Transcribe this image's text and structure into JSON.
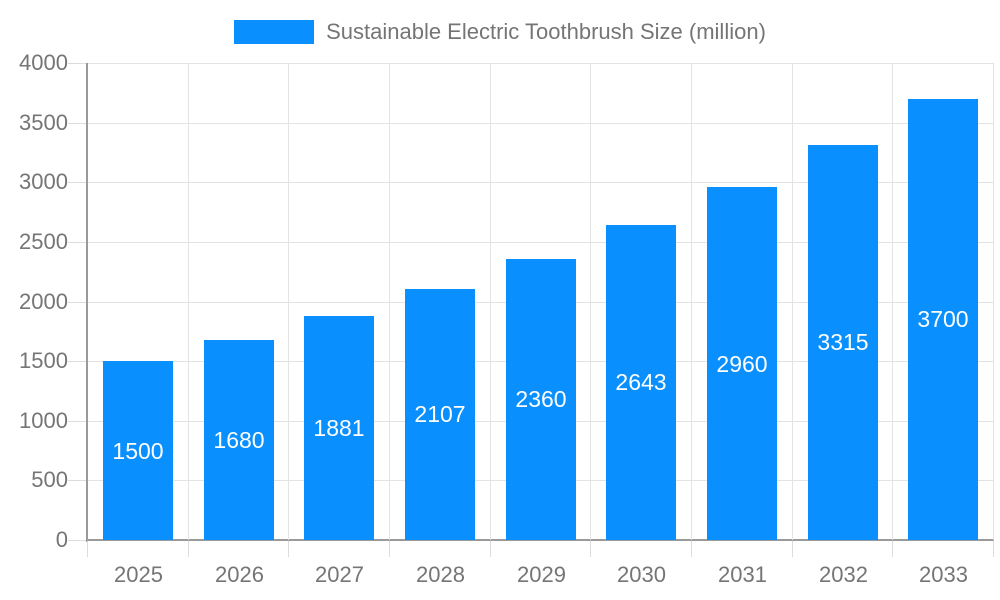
{
  "chart_data": {
    "type": "bar",
    "title": "Sustainable Electric Toothbrush Size (million)",
    "categories": [
      "2025",
      "2026",
      "2027",
      "2028",
      "2029",
      "2030",
      "2031",
      "2032",
      "2033"
    ],
    "values": [
      1500,
      1680,
      1881,
      2107,
      2360,
      2643,
      2960,
      3315,
      3700
    ],
    "ylim": [
      0,
      4000
    ],
    "yticks": [
      0,
      500,
      1000,
      1500,
      2000,
      2500,
      3000,
      3500,
      4000
    ],
    "ytick_labels": [
      "0",
      "500",
      "1000",
      "1500",
      "2000",
      "2500",
      "3000",
      "3500",
      "4000"
    ],
    "xlabel": "",
    "ylabel": "",
    "grid": true,
    "legend_position": "top",
    "bar_label_position": "center-of-bar",
    "colors": {
      "bar": "#0A8FFF",
      "bar_label": "#FFFFFF",
      "axis_text": "#757575",
      "title_text": "#757575",
      "grid_line": "#E3E3E3",
      "tick_line": "#DCDCDC",
      "axis_line": "#9A9A9A",
      "background": "#FFFFFF"
    }
  }
}
